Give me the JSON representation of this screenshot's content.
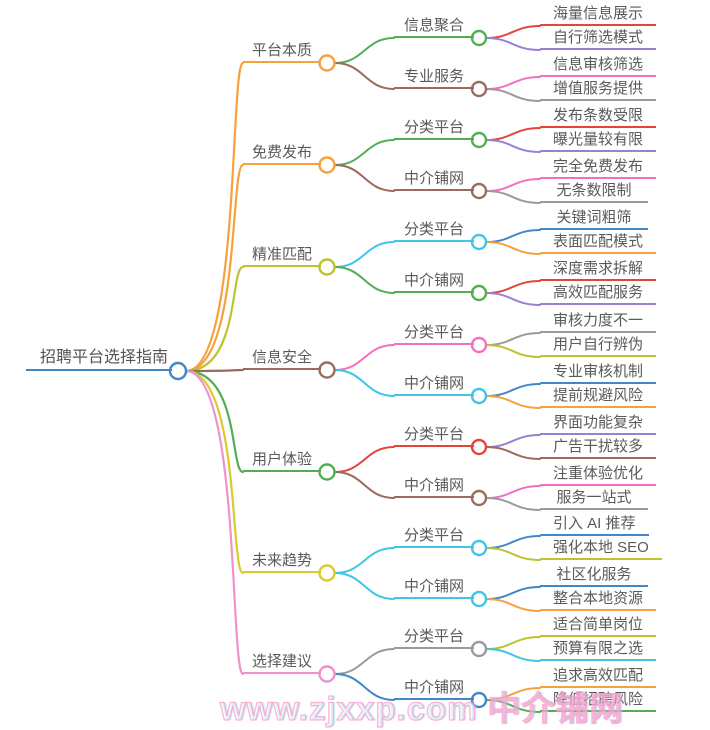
{
  "root": {
    "label": "招聘平台选择指南",
    "color": "blue"
  },
  "watermark": {
    "text": "www.zjxxp.com 中介铺网"
  },
  "palette": {
    "blue": "#4287c8",
    "orange": "#f7a13d",
    "green": "#53ae53",
    "brown": "#9d6a5e",
    "red": "#e5443b",
    "purple": "#9b7fd6",
    "pink": "#f170c1",
    "pink2": "#f191cb",
    "gray": "#9a9a9a",
    "cyan": "#41c4e6",
    "olive": "#bcc32f",
    "yellow": "#d9ca2e"
  },
  "branches": [
    {
      "label": "平台本质",
      "color": "orange",
      "children": [
        {
          "label": "信息聚合",
          "color": "green",
          "children": [
            {
              "label": "海量信息展示",
              "color": "red"
            },
            {
              "label": "自行筛选模式",
              "color": "purple"
            }
          ]
        },
        {
          "label": "专业服务",
          "color": "brown",
          "children": [
            {
              "label": "信息审核筛选",
              "color": "pink"
            },
            {
              "label": "增值服务提供",
              "color": "gray"
            }
          ]
        }
      ]
    },
    {
      "label": "免费发布",
      "color": "orange",
      "children": [
        {
          "label": "分类平台",
          "color": "green",
          "children": [
            {
              "label": "发布条数受限",
              "color": "red"
            },
            {
              "label": "曝光量较有限",
              "color": "purple"
            }
          ]
        },
        {
          "label": "中介铺网",
          "color": "brown",
          "children": [
            {
              "label": "完全免费发布",
              "color": "pink"
            },
            {
              "label": "无条数限制",
              "color": "gray"
            }
          ]
        }
      ]
    },
    {
      "label": "精准匹配",
      "color": "olive",
      "children": [
        {
          "label": "分类平台",
          "color": "cyan",
          "children": [
            {
              "label": "关键词粗筛",
              "color": "blue"
            },
            {
              "label": "表面匹配模式",
              "color": "orange"
            }
          ]
        },
        {
          "label": "中介铺网",
          "color": "green",
          "children": [
            {
              "label": "深度需求拆解",
              "color": "red"
            },
            {
              "label": "高效匹配服务",
              "color": "purple"
            }
          ]
        }
      ]
    },
    {
      "label": "信息安全",
      "color": "brown",
      "children": [
        {
          "label": "分类平台",
          "color": "pink",
          "children": [
            {
              "label": "审核力度不一",
              "color": "gray"
            },
            {
              "label": "用户自行辨伪",
              "color": "olive"
            }
          ]
        },
        {
          "label": "中介铺网",
          "color": "cyan",
          "children": [
            {
              "label": "专业审核机制",
              "color": "blue"
            },
            {
              "label": "提前规避风险",
              "color": "orange"
            }
          ]
        }
      ]
    },
    {
      "label": "用户体验",
      "color": "green",
      "children": [
        {
          "label": "分类平台",
          "color": "red",
          "children": [
            {
              "label": "界面功能复杂",
              "color": "purple"
            },
            {
              "label": "广告干扰较多",
              "color": "brown"
            }
          ]
        },
        {
          "label": "中介铺网",
          "color": "brown",
          "children": [
            {
              "label": "注重体验优化",
              "color": "pink"
            },
            {
              "label": "服务一站式",
              "color": "gray"
            }
          ]
        }
      ]
    },
    {
      "label": "未来趋势",
      "color": "yellow",
      "children": [
        {
          "label": "分类平台",
          "color": "cyan",
          "children": [
            {
              "label": "引入 AI 推荐",
              "color": "blue"
            },
            {
              "label": "强化本地 SEO",
              "color": "olive"
            }
          ]
        },
        {
          "label": "中介铺网",
          "color": "cyan",
          "children": [
            {
              "label": "社区化服务",
              "color": "blue"
            },
            {
              "label": "整合本地资源",
              "color": "orange"
            }
          ]
        }
      ]
    },
    {
      "label": "选择建议",
      "color": "pink2",
      "children": [
        {
          "label": "分类平台",
          "color": "gray",
          "children": [
            {
              "label": "适合简单岗位",
              "color": "olive"
            },
            {
              "label": "预算有限之选",
              "color": "cyan"
            }
          ]
        },
        {
          "label": "中介铺网",
          "color": "blue",
          "children": [
            {
              "label": "追求高效匹配",
              "color": "orange"
            },
            {
              "label": "降低招聘风险",
              "color": "green"
            }
          ]
        }
      ]
    }
  ]
}
